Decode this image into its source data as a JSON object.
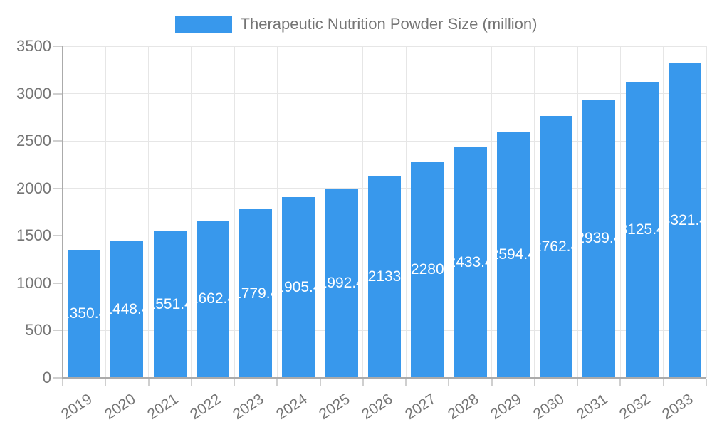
{
  "chart_data": {
    "type": "bar",
    "series_name": "Therapeutic Nutrition Powder Size (million)",
    "categories": [
      "2019",
      "2020",
      "2021",
      "2022",
      "2023",
      "2024",
      "2025",
      "2026",
      "2027",
      "2028",
      "2029",
      "2030",
      "2031",
      "2032",
      "2033"
    ],
    "values": [
      1350.4,
      1448.4,
      1551.4,
      1662.4,
      1779.4,
      1905.4,
      1992.4,
      2133,
      2280,
      2433.4,
      2594.4,
      2762.4,
      2939.4,
      3125.4,
      3321.4
    ],
    "value_labels": [
      "1350.4",
      "1448.4",
      "1551.4",
      "1662.4",
      "1779.4",
      "1905.4",
      "1992.4",
      "2133",
      "2280",
      "2433.4",
      "2594.4",
      "2762.4",
      "2939.4",
      "3125.4",
      "3321.4"
    ],
    "ylim": [
      0,
      3500
    ],
    "ytick_step": 500,
    "ytick_labels": [
      "0",
      "500",
      "1000",
      "1500",
      "2000",
      "2500",
      "3000",
      "3500"
    ],
    "grid": true,
    "legend_position": "top",
    "bar_color": "#3898EC",
    "datalabel_color": "#FFFFFF",
    "axis_text_color": "#757575"
  }
}
